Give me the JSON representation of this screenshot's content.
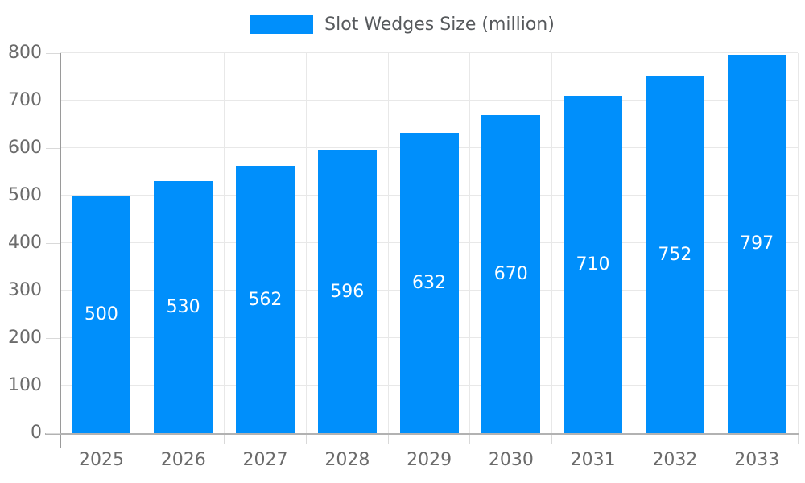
{
  "legend": {
    "label": "Slot Wedges Size (million)"
  },
  "colors": {
    "bar": "#008ffb",
    "grid": "#e8e8e8",
    "axis_line": "#9a9a9a",
    "axis_label_text": "#6b6b6b",
    "value_label_text": "#ffffff",
    "legend_text": "#56595c"
  },
  "chart_data": {
    "type": "bar",
    "title": "Slot Wedges Size (million)",
    "categories": [
      "2025",
      "2026",
      "2027",
      "2028",
      "2029",
      "2030",
      "2031",
      "2032",
      "2033"
    ],
    "values": [
      500,
      530,
      562,
      596,
      632,
      670,
      710,
      752,
      797
    ],
    "xlabel": "",
    "ylabel": "",
    "ylim": [
      0,
      800
    ],
    "ytick_step": 100,
    "ytick_labels": [
      "0",
      "100",
      "200",
      "300",
      "400",
      "500",
      "600",
      "700",
      "800"
    ],
    "grid": true,
    "legend_position": "top",
    "value_labels": "centered-inside-bars"
  }
}
